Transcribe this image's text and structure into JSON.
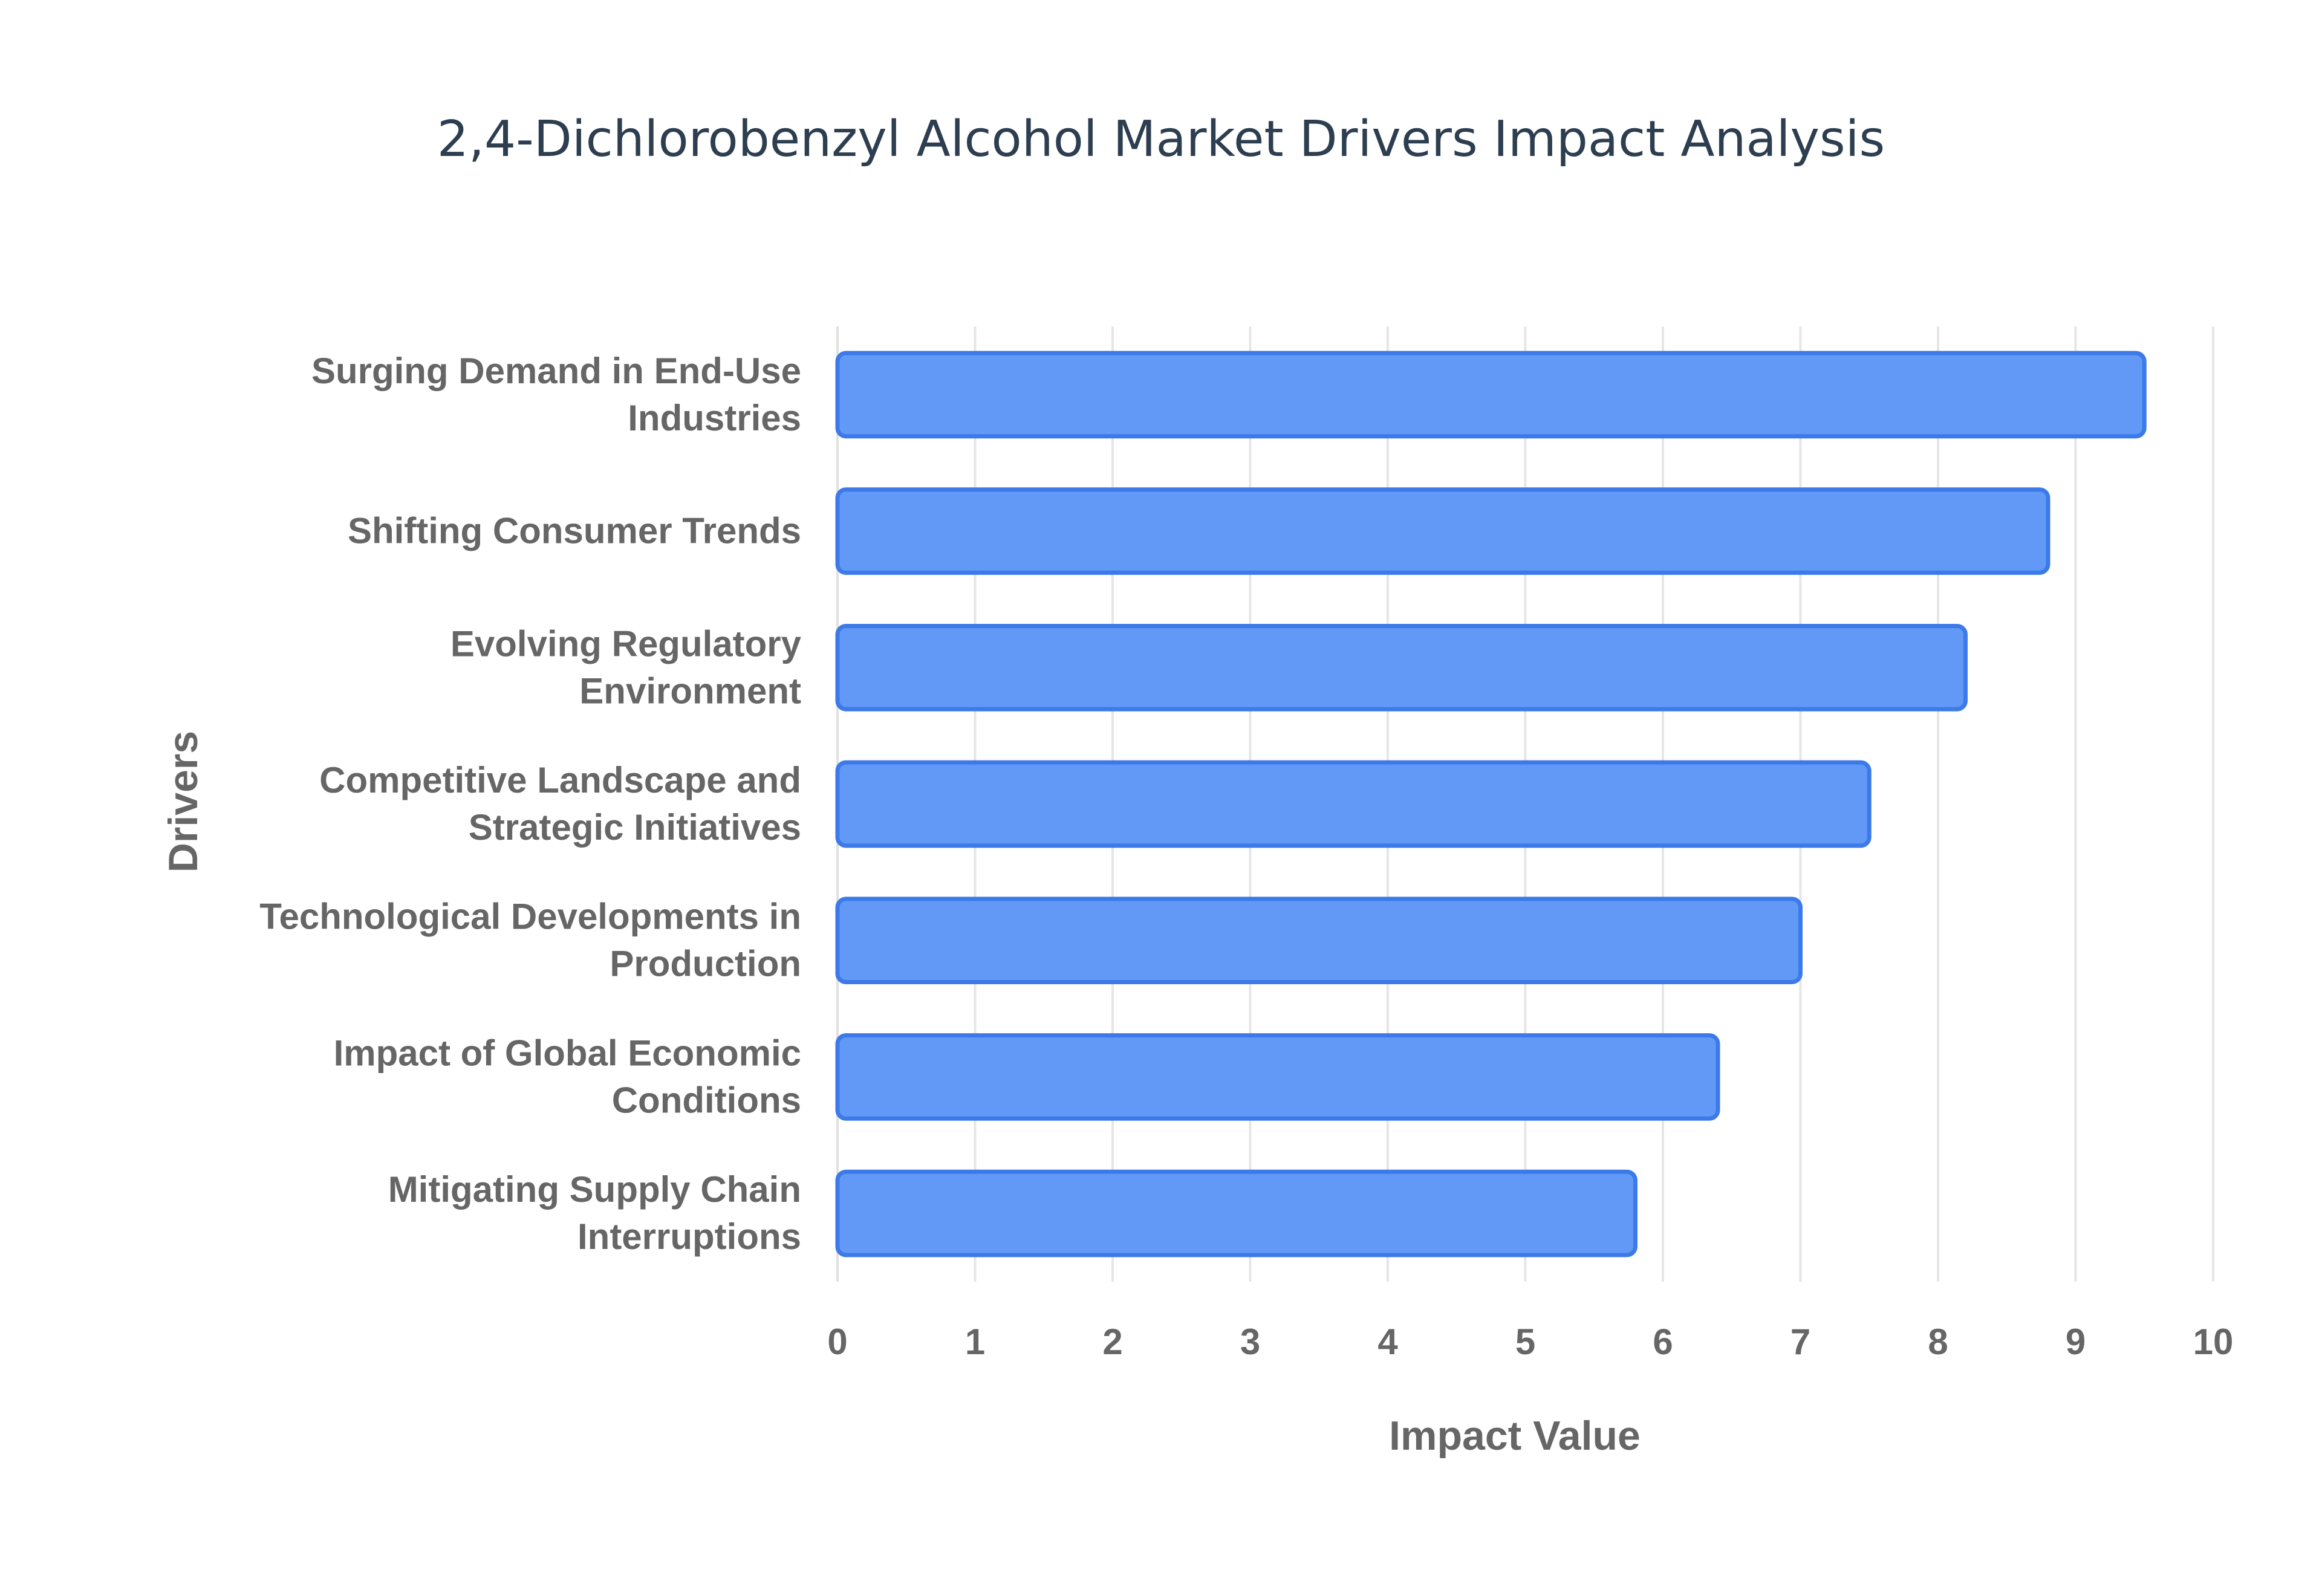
{
  "chart_data": {
    "type": "bar",
    "orientation": "horizontal",
    "title": "2,4-Dichlorobenzyl Alcohol Market Drivers Impact Analysis",
    "xlabel": "Impact Value",
    "ylabel": "Drivers",
    "xlim": [
      0,
      10
    ],
    "xticks": [
      "0",
      "1",
      "2",
      "3",
      "4",
      "5",
      "6",
      "7",
      "8",
      "9",
      "10"
    ],
    "grid": true,
    "legend": "none",
    "bar_color": "#6399f6",
    "bar_border_color": "#3b7ae8",
    "categories": [
      [
        "Surging Demand in End-Use",
        "Industries"
      ],
      [
        "Shifting Consumer Trends"
      ],
      [
        "Evolving Regulatory",
        "Environment"
      ],
      [
        "Competitive Landscape and",
        "Strategic Initiatives"
      ],
      [
        "Technological Developments in",
        "Production"
      ],
      [
        "Impact of Global Economic",
        "Conditions"
      ],
      [
        "Mitigating Supply Chain",
        "Interruptions"
      ]
    ],
    "values": [
      9.5,
      8.8,
      8.2,
      7.5,
      7.0,
      6.4,
      5.8
    ]
  }
}
